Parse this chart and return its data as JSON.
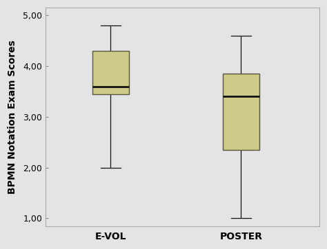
{
  "categories": [
    "E-VOL",
    "POSTER"
  ],
  "evol": {
    "whisker_low": 2.0,
    "q1": 3.45,
    "median": 3.6,
    "q3": 4.3,
    "whisker_high": 4.8
  },
  "poster": {
    "whisker_low": 1.0,
    "q1": 2.35,
    "median": 3.4,
    "q3": 3.85,
    "whisker_high": 4.6
  },
  "box_color": "#ceca87",
  "box_edge_color": "#555540",
  "median_color": "#111111",
  "whisker_color": "#111111",
  "cap_color": "#111111",
  "background_color": "#e4e4e4",
  "ylabel": "BPMN Notation Exam Scores",
  "ylim": [
    0.85,
    5.15
  ],
  "yticks": [
    1.0,
    2.0,
    3.0,
    4.0,
    5.0
  ],
  "ytick_labels": [
    "1,00",
    "2,00",
    "3,00",
    "4,00",
    "5,00"
  ],
  "box_width": 0.28,
  "positions": [
    1,
    2
  ],
  "xlim": [
    0.5,
    2.6
  ],
  "figsize": [
    4.74,
    3.62
  ],
  "dpi": 100,
  "tick_fontsize": 9,
  "label_fontsize": 10,
  "cat_fontsize": 10
}
